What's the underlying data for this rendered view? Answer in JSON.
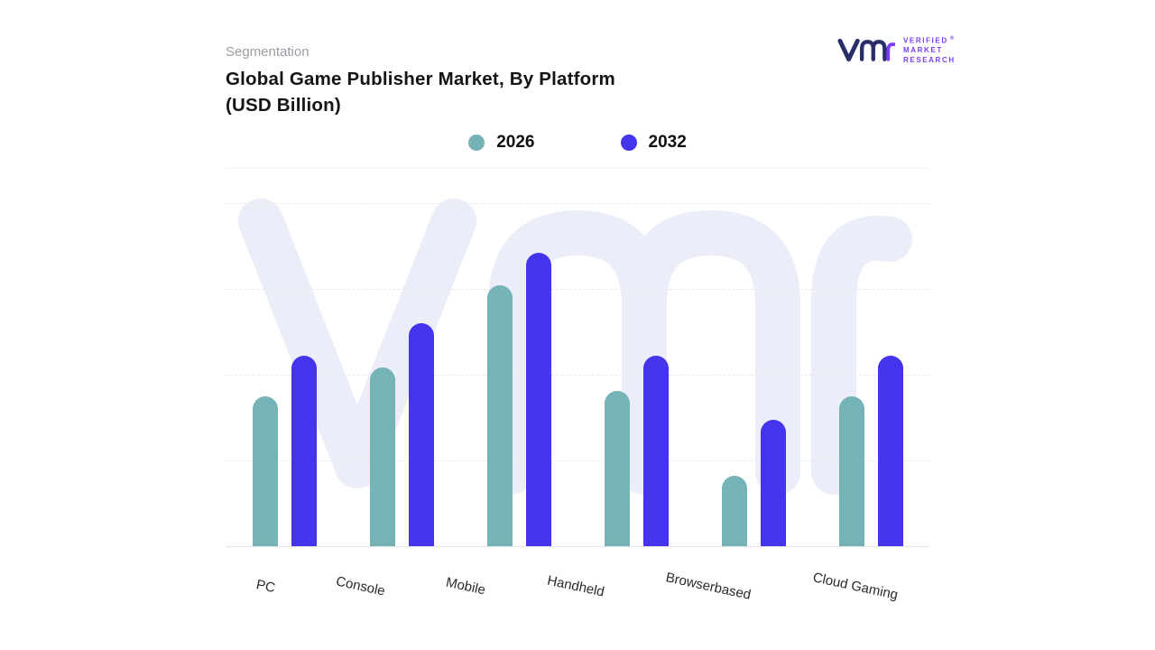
{
  "header": {
    "eyebrow": "Segmentation",
    "title_line1": "Global Game Publisher Market, By Platform",
    "title_line2": "(USD Billion)"
  },
  "logo": {
    "brand_lines": [
      "VERIFIED",
      "MARKET",
      "RESEARCH"
    ],
    "registered_mark": "®",
    "mark_color_primary": "#272e6a",
    "mark_color_accent": "#7b3ff2",
    "text_color": "#7b3ff2"
  },
  "watermark": {
    "text": "vmr",
    "color": "#ebedf9"
  },
  "chart_data": {
    "type": "bar",
    "title": "Global Game Publisher Market, By Platform (USD Billion)",
    "categories": [
      "PC",
      "Console",
      "Mobile",
      "Handheld",
      "Browserbased",
      "Cloud Gaming"
    ],
    "series": [
      {
        "name": "2026",
        "color": "#75b3b6",
        "values": [
          51,
          61,
          89,
          53,
          24,
          51
        ]
      },
      {
        "name": "2032",
        "color": "#4434ec",
        "values": [
          65,
          76,
          100,
          65,
          43,
          65
        ]
      }
    ],
    "xlabel": "",
    "ylabel": "",
    "ylim": [
      0,
      117
    ],
    "value_axis_labels_visible": false,
    "values_estimated": true,
    "grid": "horizontal-dashed",
    "legend_position": "top-center",
    "units": "USD Billion"
  }
}
